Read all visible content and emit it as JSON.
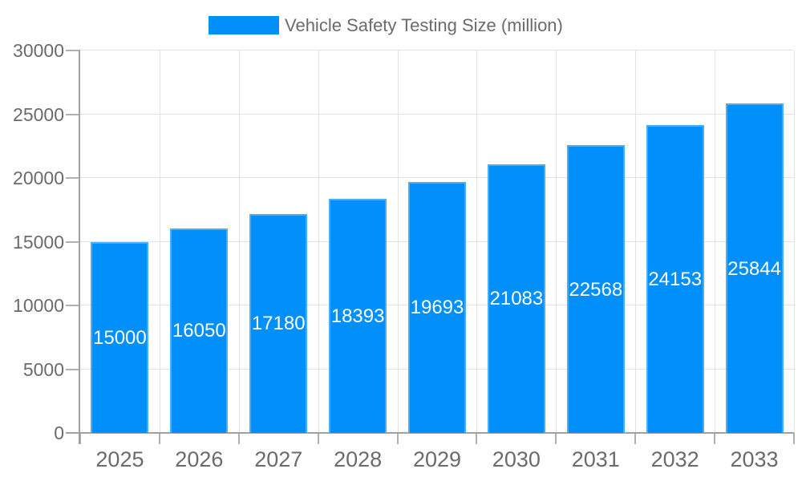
{
  "legend": {
    "label": "Vehicle Safety Testing Size (million)"
  },
  "chart_data": {
    "type": "bar",
    "title": "",
    "xlabel": "",
    "ylabel": "",
    "legend_position": "top",
    "grid": true,
    "value_labels": "inside-center",
    "categories": [
      "2025",
      "2026",
      "2027",
      "2028",
      "2029",
      "2030",
      "2031",
      "2032",
      "2033"
    ],
    "series": [
      {
        "name": "Vehicle Safety Testing Size (million)",
        "values": [
          15000,
          16050,
          17180,
          18393,
          19693,
          21083,
          22568,
          24153,
          25844
        ]
      }
    ],
    "ylim": [
      0,
      30000
    ],
    "ytick_step": 5000,
    "ytick_labels": [
      "0",
      "5000",
      "10000",
      "15000",
      "20000",
      "25000",
      "30000"
    ],
    "colors": {
      "bar": "#008FFB",
      "value_label": "#FFFFFF",
      "axis_text": "#6B6B6B",
      "grid_line": "#E2E2E2",
      "axis_line": "#A0A0A0",
      "tick": "#B0B0B0",
      "background": "#FFFFFF"
    }
  }
}
